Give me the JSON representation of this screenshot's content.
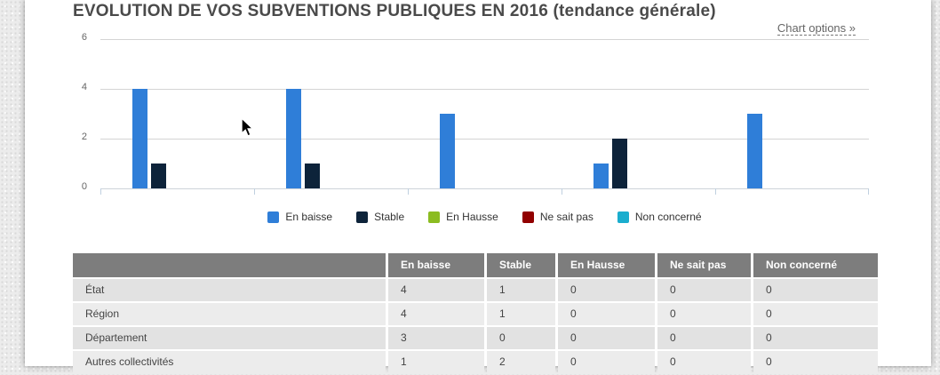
{
  "page": {
    "title": "EVOLUTION DE VOS SUBVENTIONS PUBLIQUES EN 2016 (tendance générale)",
    "chart_options_label": "Chart options »"
  },
  "colors": {
    "en_baisse": "#2f7ed8",
    "stable": "#0d233a",
    "en_hausse": "#8bbc21",
    "ne_sait_pas": "#910000",
    "non_concerne": "#1aadce",
    "table_header_bg": "#7d7d7d",
    "row_dark": "#e2e2e2",
    "row_light": "#ececec"
  },
  "chart_data": {
    "type": "bar",
    "title": "EVOLUTION DE VOS SUBVENTIONS PUBLIQUES EN 2016 (tendance générale)",
    "categories": [
      "État",
      "Région",
      "Département",
      "Autres collectivités",
      ""
    ],
    "series": [
      {
        "name": "En baisse",
        "color": "#2f7ed8",
        "values": [
          4,
          4,
          3,
          1,
          3
        ]
      },
      {
        "name": "Stable",
        "color": "#0d233a",
        "values": [
          1,
          1,
          0,
          2,
          0
        ]
      },
      {
        "name": "En Hausse",
        "color": "#8bbc21",
        "values": [
          0,
          0,
          0,
          0,
          0
        ]
      },
      {
        "name": "Ne sait pas",
        "color": "#910000",
        "values": [
          0,
          0,
          0,
          0,
          0
        ]
      },
      {
        "name": "Non concerné",
        "color": "#1aadce",
        "values": [
          0,
          0,
          0,
          0,
          0
        ]
      }
    ],
    "yticks": [
      0,
      2,
      4,
      6
    ],
    "ylim": [
      0,
      6
    ],
    "xlabel": "",
    "ylabel": "",
    "grid": true,
    "legend_position": "bottom"
  },
  "table": {
    "headers": [
      "",
      "En baisse",
      "Stable",
      "En Hausse",
      "Ne sait pas",
      "Non concerné"
    ],
    "rows": [
      {
        "label": "État",
        "values": [
          "4",
          "1",
          "0",
          "0",
          "0"
        ]
      },
      {
        "label": "Région",
        "values": [
          "4",
          "1",
          "0",
          "0",
          "0"
        ]
      },
      {
        "label": "Département",
        "values": [
          "3",
          "0",
          "0",
          "0",
          "0"
        ]
      },
      {
        "label": "Autres collectivités",
        "values": [
          "1",
          "2",
          "0",
          "0",
          "0"
        ]
      }
    ]
  }
}
